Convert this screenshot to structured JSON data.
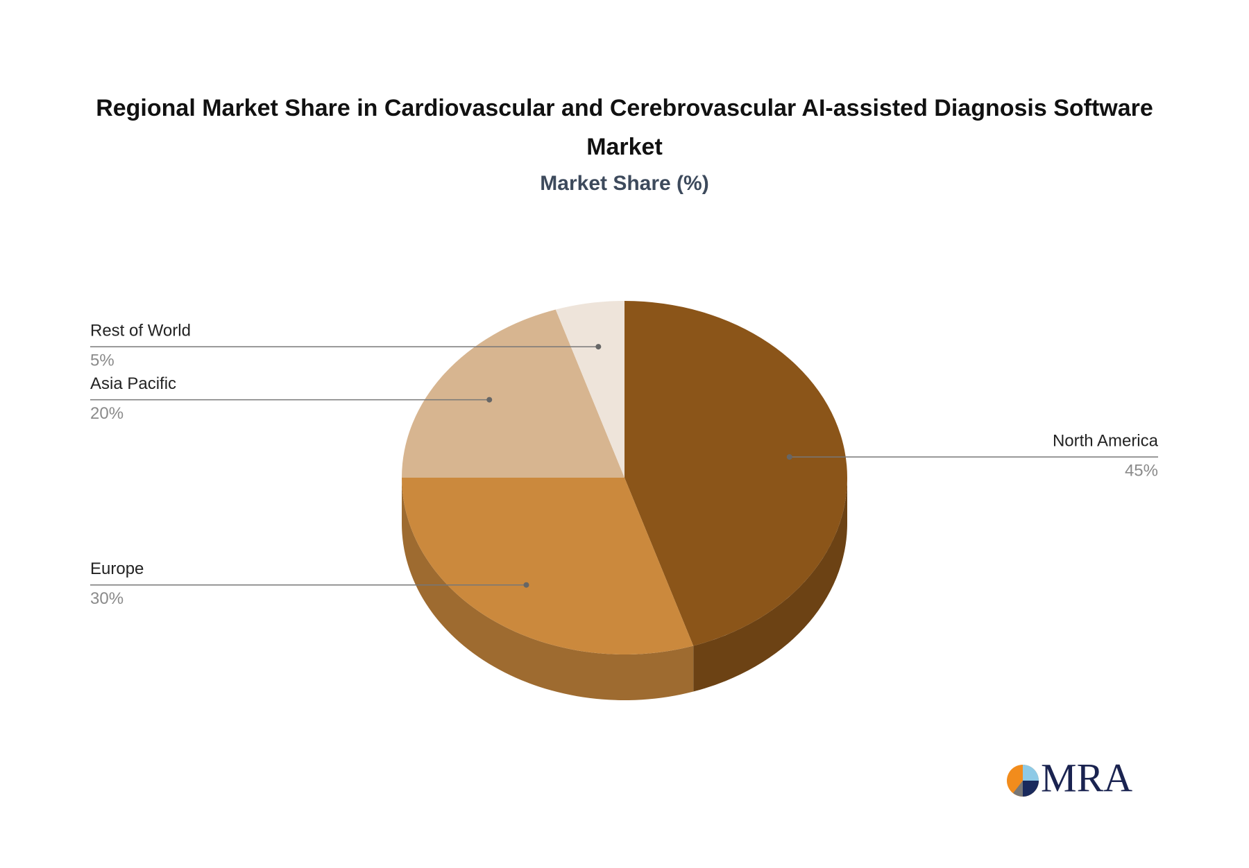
{
  "chart_data": {
    "type": "pie",
    "title": "Regional Market Share in Cardiovascular and Cerebrovascular AI-assisted Diagnosis Software Market",
    "subtitle": "Market Share (%)",
    "categories": [
      "North America",
      "Europe",
      "Asia Pacific",
      "Rest of World"
    ],
    "values": [
      45,
      30,
      20,
      5
    ],
    "value_labels": [
      "45%",
      "30%",
      "20%",
      "5%"
    ],
    "colors": [
      "#8b5519",
      "#cb893d",
      "#d7b590",
      "#eee4da"
    ]
  },
  "logo": {
    "text": "MRA"
  }
}
